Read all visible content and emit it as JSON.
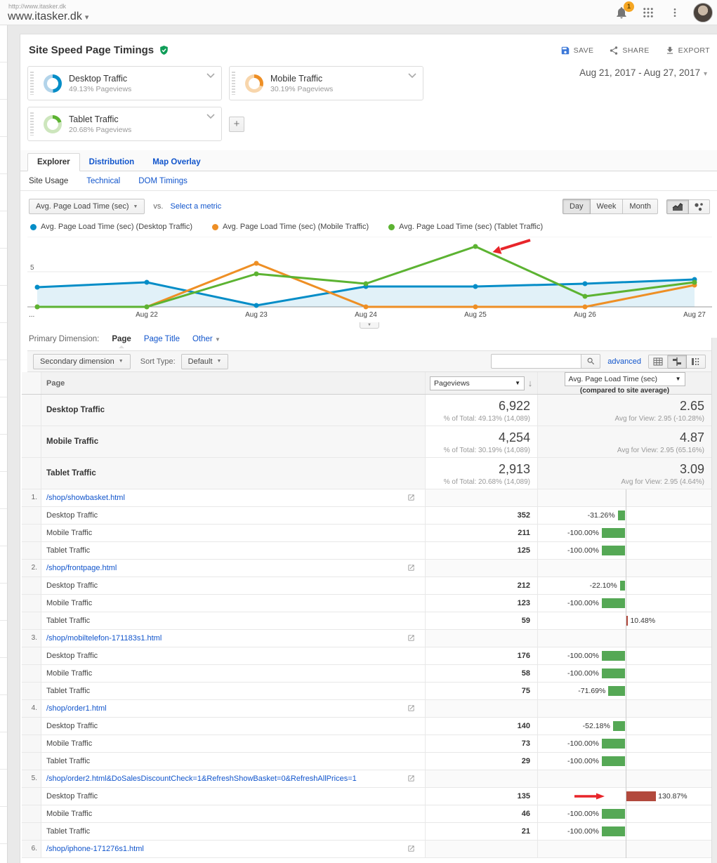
{
  "topbar": {
    "account_url": "http://www.itasker.dk",
    "account_name": "www.itasker.dk",
    "notification_count": "1"
  },
  "header": {
    "title": "Site Speed Page Timings",
    "save_label": "SAVE",
    "share_label": "SHARE",
    "export_label": "EXPORT",
    "date_range": "Aug 21, 2017 - Aug 27, 2017"
  },
  "segments": [
    {
      "name": "Desktop Traffic",
      "subtitle": "49.13% Pageviews",
      "pct": 49.13,
      "color": "#058dc7",
      "light": "#b3d4ea"
    },
    {
      "name": "Mobile Traffic",
      "subtitle": "30.19% Pageviews",
      "pct": 30.19,
      "color": "#ee8f25",
      "light": "#f8d6ac"
    },
    {
      "name": "Tablet Traffic",
      "subtitle": "20.68% Pageviews",
      "pct": 20.68,
      "color": "#5cb332",
      "light": "#cde6bd"
    }
  ],
  "add_segment_label": "+",
  "tabs": [
    "Explorer",
    "Distribution",
    "Map Overlay"
  ],
  "subtabs": [
    "Site Usage",
    "Technical",
    "DOM Timings"
  ],
  "metric_bar": {
    "metric_select": "Avg. Page Load Time (sec)",
    "vs": "vs.",
    "select_metric": "Select a metric",
    "granularity": [
      "Day",
      "Week",
      "Month"
    ],
    "granularity_selected": "Day"
  },
  "chart_data": {
    "type": "line",
    "x": [
      "Aug 21",
      "Aug 22",
      "Aug 23",
      "Aug 24",
      "Aug 25",
      "Aug 26",
      "Aug 27"
    ],
    "x_tick_labels": [
      "...",
      "Aug 22",
      "Aug 23",
      "Aug 24",
      "Aug 25",
      "Aug 26",
      "Aug 27"
    ],
    "ylabel": "",
    "ylim": [
      0,
      10
    ],
    "yticks": [
      5,
      10
    ],
    "series": [
      {
        "name": "Avg. Page Load Time (sec) (Desktop Traffic)",
        "color": "#058dc7",
        "area": true,
        "values": [
          2.8,
          3.5,
          0.2,
          2.9,
          2.9,
          3.3,
          3.9
        ]
      },
      {
        "name": "Avg. Page Load Time (sec) (Mobile Traffic)",
        "color": "#ee8f25",
        "area": false,
        "values": [
          0,
          0,
          6.2,
          0,
          0,
          0,
          3.1
        ]
      },
      {
        "name": "Avg. Page Load Time (sec) (Tablet Traffic)",
        "color": "#5cb332",
        "area": false,
        "values": [
          0,
          0,
          4.7,
          3.3,
          8.6,
          1.5,
          3.5
        ]
      }
    ],
    "annotation": "red arrow pointing at Tablet Traffic peak on Aug 25"
  },
  "dimension_bar": {
    "label": "Primary Dimension:",
    "selected": "Page",
    "options": [
      "Page",
      "Page Title",
      "Other"
    ]
  },
  "toolbar": {
    "secondary_dimension": "Secondary dimension",
    "sort_type_label": "Sort Type:",
    "sort_type_value": "Default",
    "search_value": "",
    "advanced": "advanced"
  },
  "table": {
    "columns": {
      "page": "Page",
      "pageviews": "Pageviews",
      "metric": "Avg. Page Load Time (sec)",
      "metric_note": "(compared to site average)"
    },
    "summary": [
      {
        "label": "Desktop Traffic",
        "pageviews": "6,922",
        "pv_note": "% of Total: 49.13% (14,089)",
        "value": "2.65",
        "value_note": "Avg for View: 2.95 (-10.28%)"
      },
      {
        "label": "Mobile Traffic",
        "pageviews": "4,254",
        "pv_note": "% of Total: 30.19% (14,089)",
        "value": "4.87",
        "value_note": "Avg for View: 2.95 (65.16%)"
      },
      {
        "label": "Tablet Traffic",
        "pageviews": "2,913",
        "pv_note": "% of Total: 20.68% (14,089)",
        "value": "3.09",
        "value_note": "Avg for View: 2.95 (4.64%)"
      }
    ],
    "groups": [
      {
        "index": "1.",
        "url": "/shop/showbasket.html",
        "rows": [
          {
            "label": "Desktop Traffic",
            "pageviews": "352",
            "delta": -31.26,
            "delta_label": "-31.26%"
          },
          {
            "label": "Mobile Traffic",
            "pageviews": "211",
            "delta": -100.0,
            "delta_label": "-100.00%"
          },
          {
            "label": "Tablet Traffic",
            "pageviews": "125",
            "delta": -100.0,
            "delta_label": "-100.00%"
          }
        ]
      },
      {
        "index": "2.",
        "url": "/shop/frontpage.html",
        "rows": [
          {
            "label": "Desktop Traffic",
            "pageviews": "212",
            "delta": -22.1,
            "delta_label": "-22.10%"
          },
          {
            "label": "Mobile Traffic",
            "pageviews": "123",
            "delta": -100.0,
            "delta_label": "-100.00%"
          },
          {
            "label": "Tablet Traffic",
            "pageviews": "59",
            "delta": 10.48,
            "delta_label": "10.48%"
          }
        ]
      },
      {
        "index": "3.",
        "url": "/shop/mobiltelefon-171183s1.html",
        "rows": [
          {
            "label": "Desktop Traffic",
            "pageviews": "176",
            "delta": -100.0,
            "delta_label": "-100.00%"
          },
          {
            "label": "Mobile Traffic",
            "pageviews": "58",
            "delta": -100.0,
            "delta_label": "-100.00%"
          },
          {
            "label": "Tablet Traffic",
            "pageviews": "75",
            "delta": -71.69,
            "delta_label": "-71.69%"
          }
        ]
      },
      {
        "index": "4.",
        "url": "/shop/order1.html",
        "rows": [
          {
            "label": "Desktop Traffic",
            "pageviews": "140",
            "delta": -52.18,
            "delta_label": "-52.18%"
          },
          {
            "label": "Mobile Traffic",
            "pageviews": "73",
            "delta": -100.0,
            "delta_label": "-100.00%"
          },
          {
            "label": "Tablet Traffic",
            "pageviews": "29",
            "delta": -100.0,
            "delta_label": "-100.00%"
          }
        ]
      },
      {
        "index": "5.",
        "url": "/shop/order2.html&DoSalesDiscountCheck=1&RefreshShowBasket=0&RefreshAllPrices=1",
        "rows": [
          {
            "label": "Desktop Traffic",
            "pageviews": "135",
            "delta": 130.87,
            "delta_label": "130.87%",
            "arrow": true
          },
          {
            "label": "Mobile Traffic",
            "pageviews": "46",
            "delta": -100.0,
            "delta_label": "-100.00%"
          },
          {
            "label": "Tablet Traffic",
            "pageviews": "21",
            "delta": -100.0,
            "delta_label": "-100.00%"
          }
        ]
      },
      {
        "index": "6.",
        "url": "/shop/iphone-171276s1.html",
        "rows": []
      }
    ]
  },
  "colors": {
    "negative_bar": "#55a855",
    "positive_bar": "#b2493d",
    "annotation_arrow": "#e8252a",
    "link": "#1155cc",
    "badge": "#f5a623",
    "shield": "#0f9d58"
  }
}
